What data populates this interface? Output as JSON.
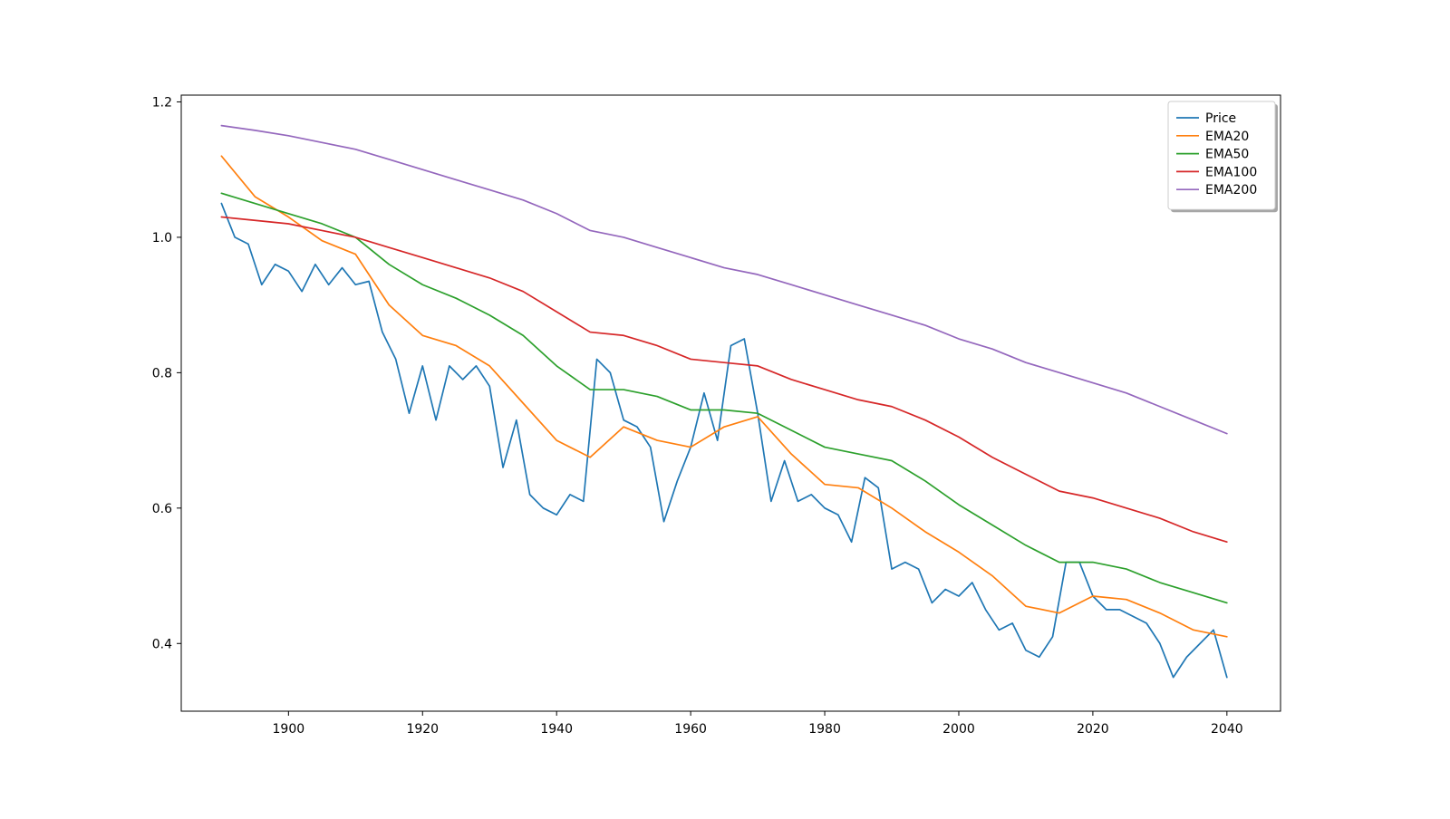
{
  "figure": {
    "background": "#ffffff"
  },
  "chart_data": {
    "type": "line",
    "title": "",
    "xlabel": "",
    "ylabel": "",
    "xlim": [
      1884,
      2048
    ],
    "ylim": [
      0.3,
      1.21
    ],
    "x_ticks": [
      1900,
      1920,
      1940,
      1960,
      1980,
      2000,
      2020,
      2040
    ],
    "x_tick_labels": [
      "1900",
      "1920",
      "1940",
      "1960",
      "1980",
      "2000",
      "2020",
      "2040"
    ],
    "y_ticks": [
      0.4,
      0.6,
      0.8,
      1.0,
      1.2
    ],
    "y_tick_labels": [
      "0.4",
      "0.6",
      "0.8",
      "1.0",
      "1.2"
    ],
    "grid": false,
    "legend": {
      "position": "upper right",
      "entries": [
        "Price",
        "EMA20",
        "EMA50",
        "EMA100",
        "EMA200"
      ]
    },
    "series": [
      {
        "name": "Price",
        "color": "#1f77b4",
        "x": [
          1890,
          1892,
          1894,
          1896,
          1898,
          1900,
          1902,
          1904,
          1906,
          1908,
          1910,
          1912,
          1914,
          1916,
          1918,
          1920,
          1922,
          1924,
          1926,
          1928,
          1930,
          1932,
          1934,
          1936,
          1938,
          1940,
          1942,
          1944,
          1946,
          1948,
          1950,
          1952,
          1954,
          1956,
          1958,
          1960,
          1962,
          1964,
          1966,
          1968,
          1970,
          1972,
          1974,
          1976,
          1978,
          1980,
          1982,
          1984,
          1986,
          1988,
          1990,
          1992,
          1994,
          1996,
          1998,
          2000,
          2002,
          2004,
          2006,
          2008,
          2010,
          2012,
          2014,
          2016,
          2018,
          2020,
          2022,
          2024,
          2026,
          2028,
          2030,
          2032,
          2034,
          2036,
          2038,
          2040
        ],
        "y": [
          1.05,
          1.0,
          0.99,
          0.93,
          0.96,
          0.95,
          0.92,
          0.96,
          0.93,
          0.955,
          0.93,
          0.935,
          0.86,
          0.82,
          0.74,
          0.81,
          0.73,
          0.81,
          0.79,
          0.81,
          0.78,
          0.66,
          0.73,
          0.62,
          0.6,
          0.59,
          0.62,
          0.61,
          0.82,
          0.8,
          0.73,
          0.72,
          0.69,
          0.58,
          0.64,
          0.69,
          0.77,
          0.7,
          0.84,
          0.85,
          0.74,
          0.61,
          0.67,
          0.61,
          0.62,
          0.6,
          0.59,
          0.55,
          0.645,
          0.63,
          0.51,
          0.52,
          0.51,
          0.46,
          0.48,
          0.47,
          0.49,
          0.45,
          0.42,
          0.43,
          0.39,
          0.38,
          0.41,
          0.52,
          0.52,
          0.47,
          0.45,
          0.45,
          0.44,
          0.43,
          0.4,
          0.35,
          0.38,
          0.4,
          0.42,
          0.35
        ]
      },
      {
        "name": "EMA20",
        "color": "#ff7f0e",
        "x": [
          1890,
          1895,
          1900,
          1905,
          1910,
          1915,
          1920,
          1925,
          1930,
          1935,
          1940,
          1945,
          1950,
          1955,
          1960,
          1965,
          1970,
          1975,
          1980,
          1985,
          1990,
          1995,
          2000,
          2005,
          2010,
          2015,
          2020,
          2025,
          2030,
          2035,
          2040
        ],
        "y": [
          1.12,
          1.06,
          1.03,
          0.995,
          0.975,
          0.9,
          0.855,
          0.84,
          0.81,
          0.755,
          0.7,
          0.675,
          0.72,
          0.7,
          0.69,
          0.72,
          0.735,
          0.68,
          0.635,
          0.63,
          0.6,
          0.565,
          0.535,
          0.5,
          0.455,
          0.445,
          0.47,
          0.465,
          0.445,
          0.42,
          0.41
        ]
      },
      {
        "name": "EMA50",
        "color": "#2ca02c",
        "x": [
          1890,
          1895,
          1900,
          1905,
          1910,
          1915,
          1920,
          1925,
          1930,
          1935,
          1940,
          1945,
          1950,
          1955,
          1960,
          1965,
          1970,
          1975,
          1980,
          1985,
          1990,
          1995,
          2000,
          2005,
          2010,
          2015,
          2020,
          2025,
          2030,
          2035,
          2040
        ],
        "y": [
          1.065,
          1.05,
          1.035,
          1.02,
          1.0,
          0.96,
          0.93,
          0.91,
          0.885,
          0.855,
          0.81,
          0.775,
          0.775,
          0.765,
          0.745,
          0.745,
          0.74,
          0.715,
          0.69,
          0.68,
          0.67,
          0.64,
          0.605,
          0.575,
          0.545,
          0.52,
          0.52,
          0.51,
          0.49,
          0.475,
          0.46
        ]
      },
      {
        "name": "EMA100",
        "color": "#d62728",
        "x": [
          1890,
          1895,
          1900,
          1905,
          1910,
          1915,
          1920,
          1925,
          1930,
          1935,
          1940,
          1945,
          1950,
          1955,
          1960,
          1965,
          1970,
          1975,
          1980,
          1985,
          1990,
          1995,
          2000,
          2005,
          2010,
          2015,
          2020,
          2025,
          2030,
          2035,
          2040
        ],
        "y": [
          1.03,
          1.025,
          1.02,
          1.01,
          1.0,
          0.985,
          0.97,
          0.955,
          0.94,
          0.92,
          0.89,
          0.86,
          0.855,
          0.84,
          0.82,
          0.815,
          0.81,
          0.79,
          0.775,
          0.76,
          0.75,
          0.73,
          0.705,
          0.675,
          0.65,
          0.625,
          0.615,
          0.6,
          0.585,
          0.565,
          0.55
        ]
      },
      {
        "name": "EMA200",
        "color": "#9467bd",
        "x": [
          1890,
          1895,
          1900,
          1905,
          1910,
          1915,
          1920,
          1925,
          1930,
          1935,
          1940,
          1945,
          1950,
          1955,
          1960,
          1965,
          1970,
          1975,
          1980,
          1985,
          1990,
          1995,
          2000,
          2005,
          2010,
          2015,
          2020,
          2025,
          2030,
          2035,
          2040
        ],
        "y": [
          1.165,
          1.158,
          1.15,
          1.14,
          1.13,
          1.115,
          1.1,
          1.085,
          1.07,
          1.055,
          1.035,
          1.01,
          1.0,
          0.985,
          0.97,
          0.955,
          0.945,
          0.93,
          0.915,
          0.9,
          0.885,
          0.87,
          0.85,
          0.835,
          0.815,
          0.8,
          0.785,
          0.77,
          0.75,
          0.73,
          0.71
        ]
      }
    ],
    "style": {
      "spine_color": "#000000",
      "tick_color": "#000000",
      "legend_edge_color": "#cccccc",
      "legend_face_color": "#ffffff",
      "legend_shadow_color": "#a6a6a6"
    }
  }
}
